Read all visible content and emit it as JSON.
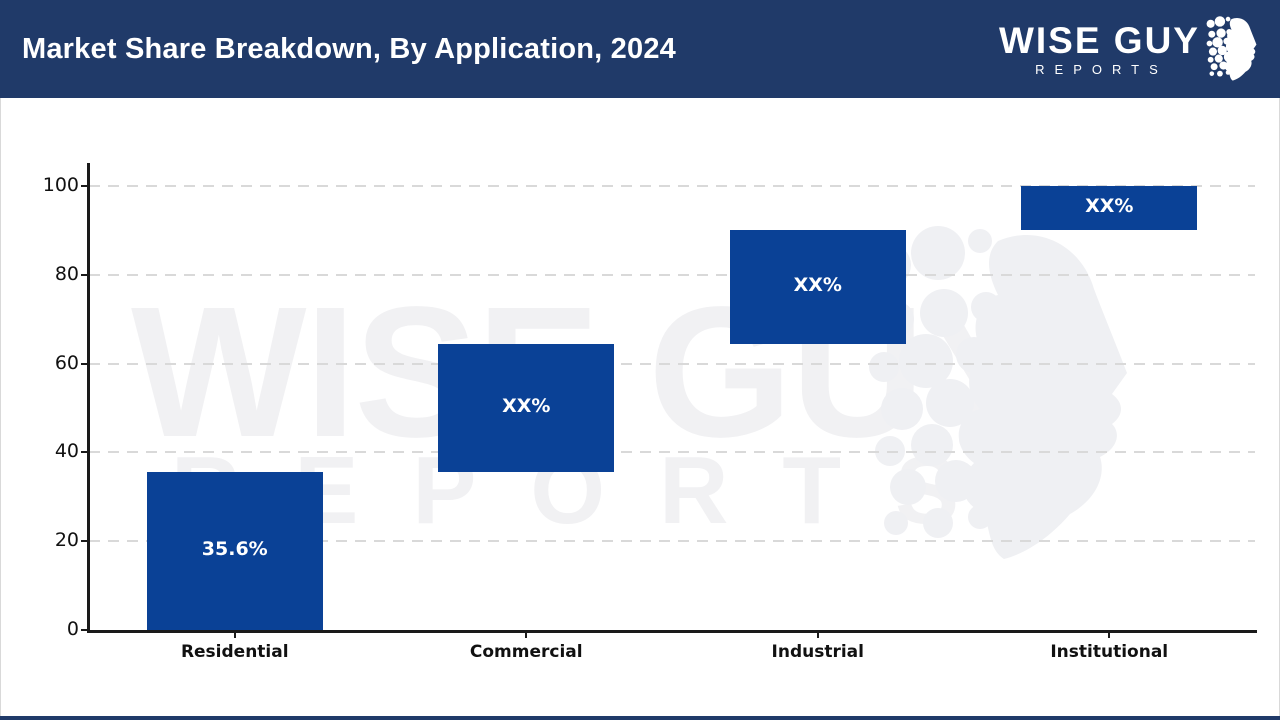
{
  "header": {
    "title": "Market Share Breakdown, By Application, 2024",
    "logo": {
      "line1": "WISE GUY",
      "line2": "REPORTS"
    }
  },
  "watermark": {
    "line1": "WISE GUY",
    "line2": "REPORTS"
  },
  "colors": {
    "header_bg": "#203a69",
    "bar_blue": "#0a4196",
    "watermark_gray": "#f1f1f3",
    "gridline_gray": "#d9d9d9",
    "axis_black": "#1a1a1a"
  },
  "chart_data": {
    "type": "bar",
    "subtype": "floating-waterfall",
    "title": "Market Share Breakdown, By Application, 2024",
    "categories": [
      "Residential",
      "Commercial",
      "Industrial",
      "Institutional"
    ],
    "bars": [
      {
        "category": "Residential",
        "start": 0,
        "end": 35.6,
        "label": "35.6%"
      },
      {
        "category": "Commercial",
        "start": 35.6,
        "end": 64.4,
        "label": "XX%"
      },
      {
        "category": "Industrial",
        "start": 64.4,
        "end": 90.2,
        "label": "XX%"
      },
      {
        "category": "Institutional",
        "start": 90.2,
        "end": 100,
        "label": "XX%"
      }
    ],
    "yticks": [
      0,
      20,
      40,
      60,
      80,
      100
    ],
    "ylim": [
      0,
      105
    ],
    "xlabel": "",
    "ylabel": "",
    "grid": "horizontal-dashed",
    "legend": "none",
    "bar_color": "#0a4196",
    "bar_label_color": "#ffffff"
  }
}
